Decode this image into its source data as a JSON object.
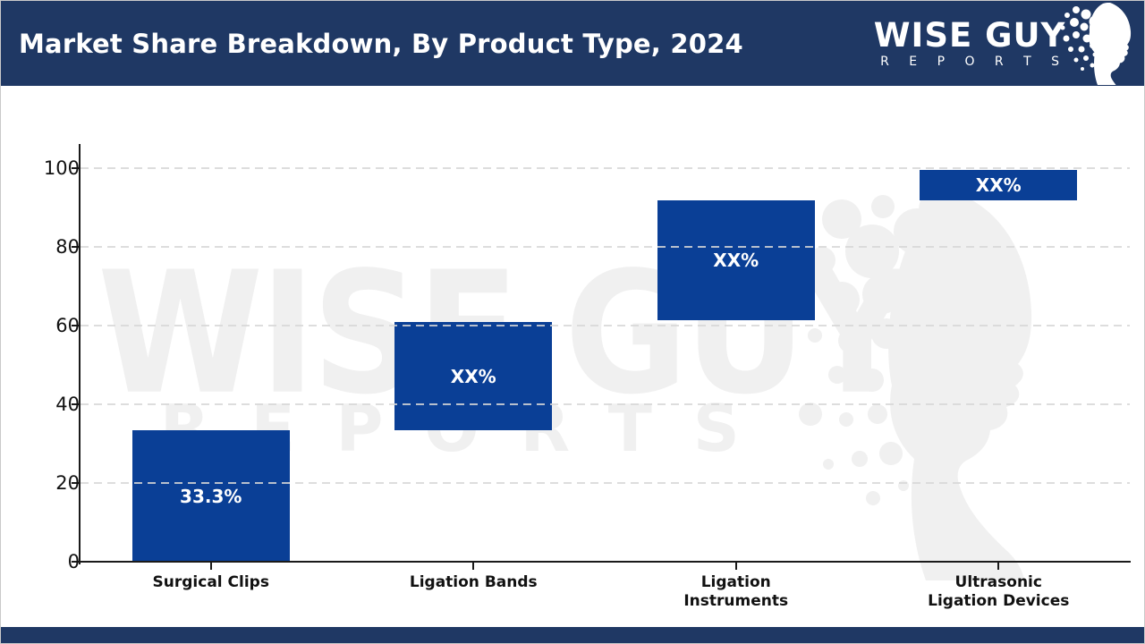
{
  "header": {
    "title": "Market Share Breakdown, By Product Type, 2024",
    "bg_color": "#1f3864"
  },
  "logo": {
    "line1": "WISE GUY",
    "line2": "R E P O R T S",
    "icon": "dotted-head-profile"
  },
  "watermark": {
    "line1": "WISE GUY",
    "line2": "REPORTS",
    "color": "#f0f0f0"
  },
  "chart_data": {
    "type": "bar",
    "subtype": "waterfall",
    "title": "Market Share Breakdown, By Product Type, 2024",
    "categories": [
      "Surgical Clips",
      "Ligation Bands",
      "Ligation\nInstruments",
      "Ultrasonic\nLigation Devices"
    ],
    "bars": [
      {
        "category": "Surgical Clips",
        "start": 0,
        "end": 33.3,
        "label": "33.3%"
      },
      {
        "category": "Ligation Bands",
        "start": 33.3,
        "end": 61.0,
        "label": "XX%"
      },
      {
        "category": "Ligation Instruments",
        "start": 61.3,
        "end": 91.8,
        "label": "XX%"
      },
      {
        "category": "Ultrasonic Ligation Devices",
        "start": 91.8,
        "end": 99.5,
        "label": "XX%"
      }
    ],
    "yticks": [
      0,
      20,
      40,
      60,
      80,
      100
    ],
    "ylim": [
      0,
      105
    ],
    "xlabel": "",
    "ylabel": "",
    "legend": "none",
    "grid": "horizontal-dashed",
    "bar_color": "#0a3f96",
    "label_color": "#ffffff"
  },
  "footer": {
    "bg_color": "#1f3864"
  }
}
